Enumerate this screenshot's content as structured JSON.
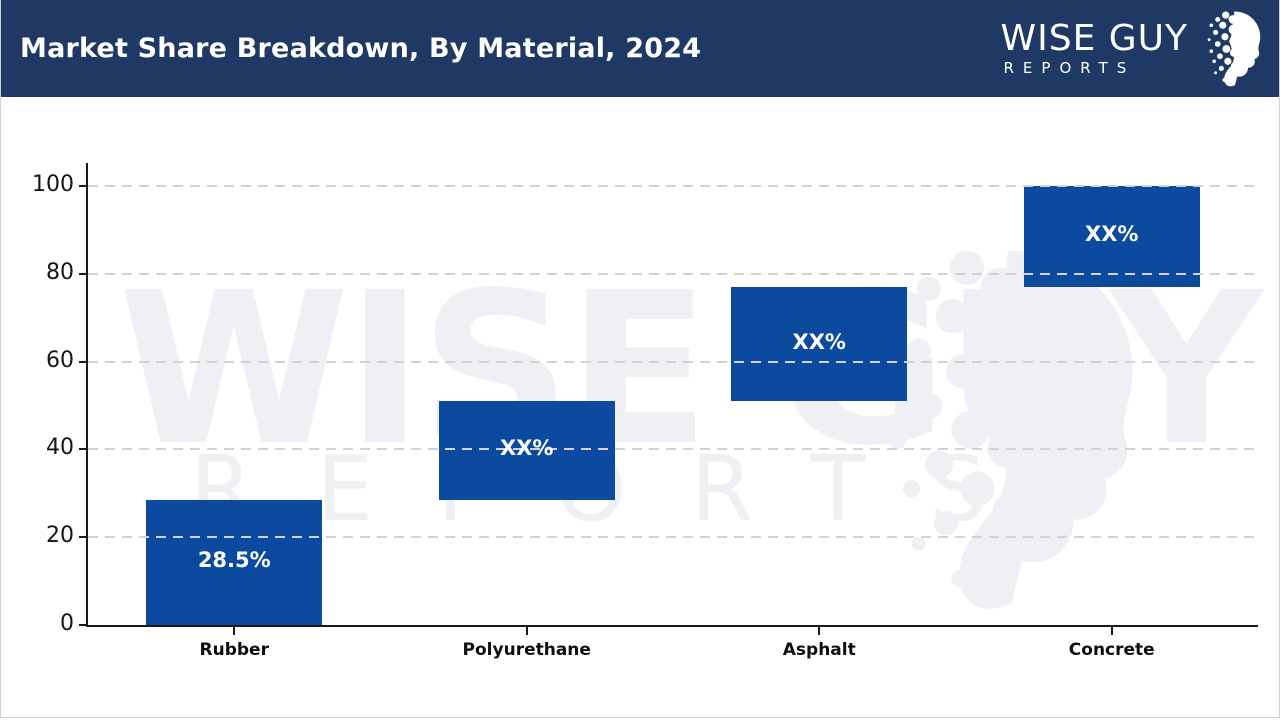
{
  "header": {
    "title": "Market Share Breakdown, By Material, 2024",
    "bg_color": "#1f3864",
    "logo": {
      "name": "WISE GUY",
      "tagline": "REPORTS"
    }
  },
  "watermark": {
    "line1": "WISE GUY",
    "line2": "REPORTS"
  },
  "chart_data": {
    "type": "bar",
    "subtype": "waterfall",
    "title": "Market Share Breakdown, By Material, 2024",
    "categories": [
      "Rubber",
      "Polyurethane",
      "Asphalt",
      "Concrete"
    ],
    "segments": [
      {
        "category": "Rubber",
        "start": 0,
        "end": 28.5,
        "label": "28.5%"
      },
      {
        "category": "Polyurethane",
        "start": 28.5,
        "end": 51,
        "label": "XX%"
      },
      {
        "category": "Asphalt",
        "start": 51,
        "end": 77,
        "label": "XX%"
      },
      {
        "category": "Concrete",
        "start": 77,
        "end": 100,
        "label": "XX%"
      }
    ],
    "xlabel": "",
    "ylabel": "",
    "yticks": [
      0,
      20,
      40,
      60,
      80,
      100
    ],
    "ylim": [
      0,
      105
    ],
    "grid": {
      "horizontal": true,
      "style": "dashed",
      "color": "#d2d2d2",
      "drawn_over_bars": true
    },
    "legend": "none",
    "bar_color": "#0b4a9e",
    "bar_label_color": "#ffffff",
    "axis_color": "#1a1a1a"
  }
}
